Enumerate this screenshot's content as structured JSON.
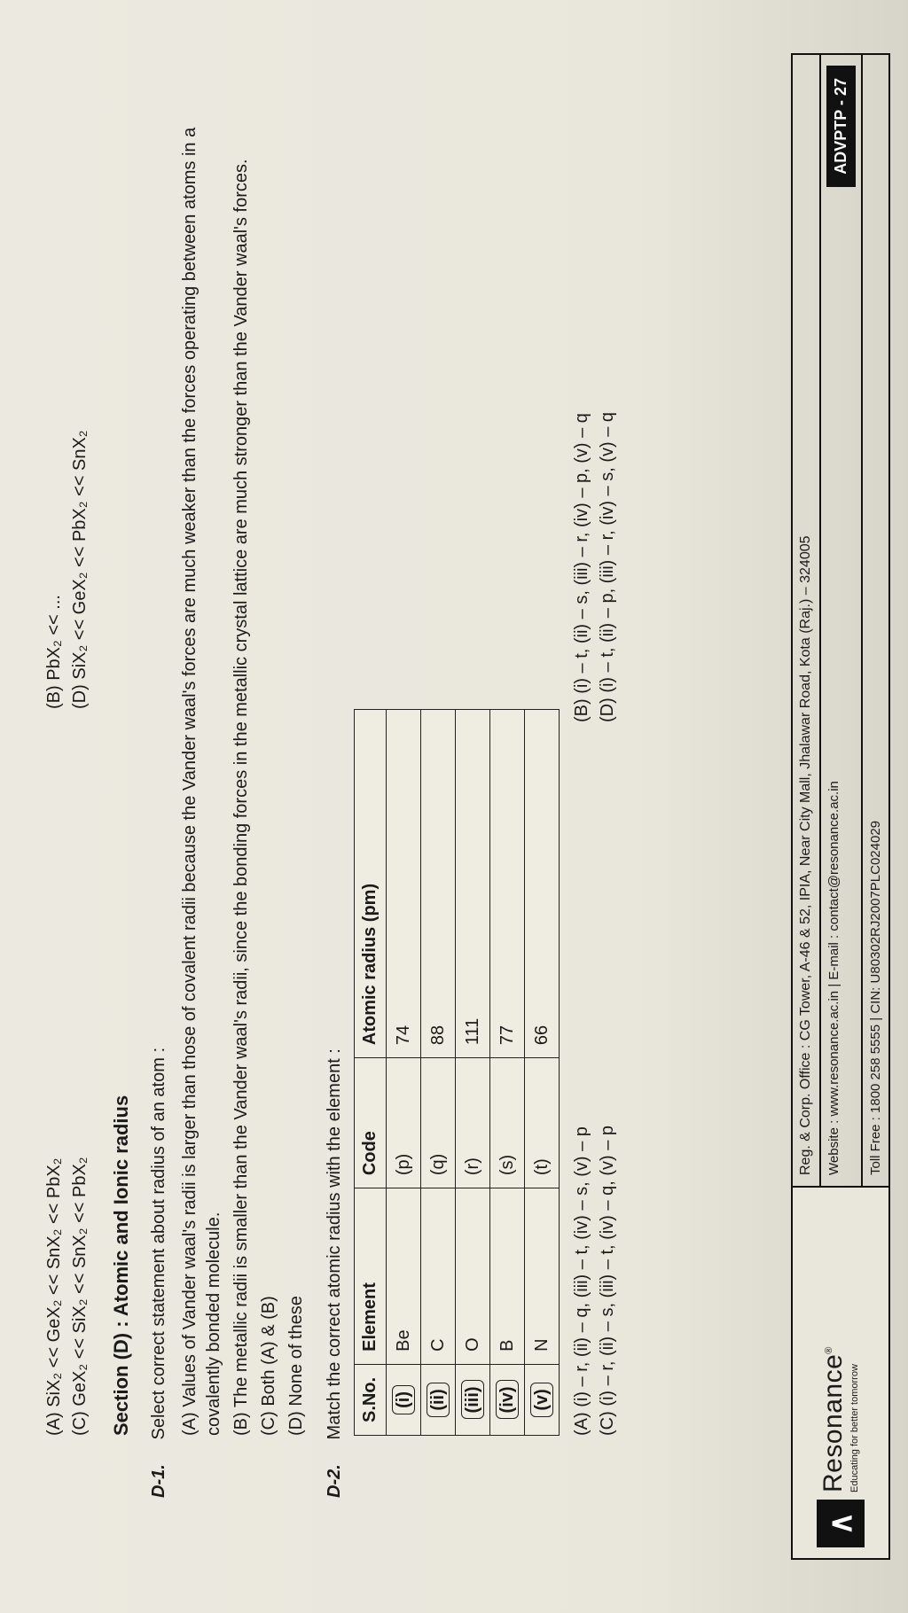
{
  "top_options": {
    "A": "SiX₂ << GeX₂ << SnX₂ << PbX₂",
    "B": "PbX₂ << ...",
    "C": "GeX₂ << SiX₂ << SnX₂ << PbX₂",
    "D": "SiX₂ << GeX₂ << PbX₂ << SnX₂"
  },
  "section": {
    "label": "Section (D) : Atomic and Ionic radius"
  },
  "q1": {
    "number": "D-1.",
    "stem": "Select correct statement about radius of an atom :",
    "A": "Values of Vander waal's radii is larger than those of covalent radii because the Vander waal's forces are much weaker than the forces operating between atoms in a covalently bonded molecule.",
    "B": "The metallic radii is smaller than the Vander waal's radii, since the bonding forces in the metallic crystal lattice are much stronger than the Vander waal's forces.",
    "C": "Both (A) & (B)",
    "D": "None of these"
  },
  "q2": {
    "number": "D-2.",
    "stem": "Match the correct atomic radius with the element :",
    "table": {
      "headers": [
        "S.No.",
        "Element",
        "Code",
        "Atomic radius (pm)"
      ],
      "rows": [
        {
          "sno": "(i)",
          "el": "Be",
          "code": "(p)",
          "radius": "74"
        },
        {
          "sno": "(ii)",
          "el": "C",
          "code": "(q)",
          "radius": "88"
        },
        {
          "sno": "(iii)",
          "el": "O",
          "code": "(r)",
          "radius": "111"
        },
        {
          "sno": "(iv)",
          "el": "B",
          "code": "(s)",
          "radius": "77"
        },
        {
          "sno": "(v)",
          "el": "N",
          "code": "(t)",
          "radius": "66"
        }
      ],
      "col_widths": [
        "70px",
        "220px",
        "140px",
        "auto"
      ],
      "border_color": "#222222",
      "bg_color": "#efece1",
      "font_size": 20
    },
    "answers": {
      "A": "(i) – r, (ii) – q, (iii) – t, (iv) – s, (v) – p",
      "B": "(i) – t, (ii) – s, (iii) – r, (iv) – p, (v) – q",
      "C": "(i) – r, (ii) – s, (iii) – t, (iv) – q, (v) – p",
      "D": "(i) – t, (ii) – p, (iii) – r, (iv) – s, (v) – q"
    }
  },
  "footer": {
    "brand": "Resonance",
    "brand_sup": "®",
    "tagline": "Educating for better tomorrow",
    "address": "Reg. & Corp. Office : CG Tower, A-46 & 52, IPIA, Near City Mall, Jhalawar Road, Kota (Raj.) – 324005",
    "website": "Website : www.resonance.ac.in | E-mail : contact@resonance.ac.in",
    "toll": "Toll Free : 1800 258 5555 | CIN: U80302RJ2007PLC024029",
    "badge": "ADVPTP - 27",
    "colors": {
      "border": "#111111",
      "badge_bg": "#111111",
      "badge_fg": "#ffffff",
      "page_bg": "#e9e7dc"
    }
  }
}
